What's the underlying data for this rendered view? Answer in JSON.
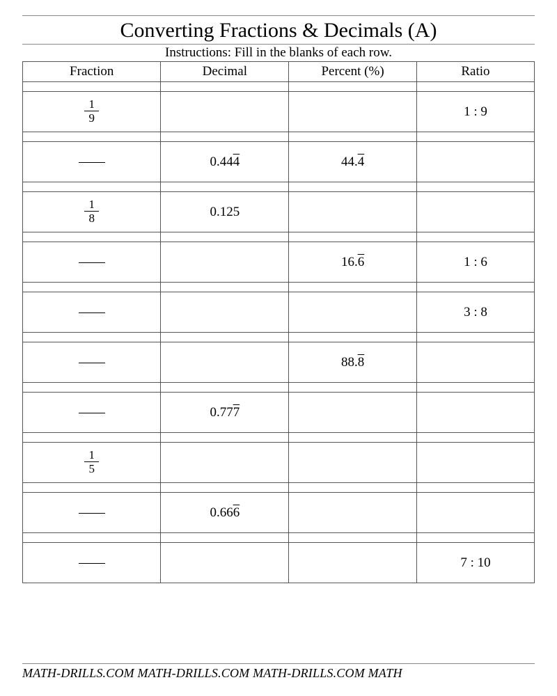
{
  "title": "Converting Fractions & Decimals (A)",
  "instructions": "Instructions: Fill in the blanks of each row.",
  "columns": {
    "fraction": "Fraction",
    "decimal": "Decimal",
    "percent": "Percent (%)",
    "ratio": "Ratio"
  },
  "rows": [
    {
      "fraction": {
        "type": "frac",
        "num": "1",
        "den": "9"
      },
      "decimal": "",
      "percent": "",
      "ratio": "1 : 9"
    },
    {
      "fraction": {
        "type": "blank"
      },
      "decimal": {
        "type": "rep",
        "base": "0.44",
        "rep": "4"
      },
      "percent": {
        "type": "rep",
        "base": "44.",
        "rep": "4"
      },
      "ratio": ""
    },
    {
      "fraction": {
        "type": "frac",
        "num": "1",
        "den": "8"
      },
      "decimal": "0.125",
      "percent": "",
      "ratio": ""
    },
    {
      "fraction": {
        "type": "blank"
      },
      "decimal": "",
      "percent": {
        "type": "rep",
        "base": "16.",
        "rep": "6"
      },
      "ratio": "1 : 6"
    },
    {
      "fraction": {
        "type": "blank"
      },
      "decimal": "",
      "percent": "",
      "ratio": "3 : 8"
    },
    {
      "fraction": {
        "type": "blank"
      },
      "decimal": "",
      "percent": {
        "type": "rep",
        "base": "88.",
        "rep": "8"
      },
      "ratio": ""
    },
    {
      "fraction": {
        "type": "blank"
      },
      "decimal": {
        "type": "rep",
        "base": "0.77",
        "rep": "7"
      },
      "percent": "",
      "ratio": ""
    },
    {
      "fraction": {
        "type": "frac",
        "num": "1",
        "den": "5"
      },
      "decimal": "",
      "percent": "",
      "ratio": ""
    },
    {
      "fraction": {
        "type": "blank"
      },
      "decimal": {
        "type": "rep",
        "base": "0.66",
        "rep": "6"
      },
      "percent": "",
      "ratio": ""
    },
    {
      "fraction": {
        "type": "blank"
      },
      "decimal": "",
      "percent": "",
      "ratio": "7 : 10"
    }
  ],
  "footer_unit": "MATH-DRILLS.COM",
  "footer_repeat": 3,
  "footer_tail": "MATH",
  "style": {
    "page_bg": "#ffffff",
    "text_color": "#000000",
    "border_color": "#555555",
    "rule_color": "#888888",
    "title_fontsize": 30,
    "body_fontsize": 19,
    "frac_fontsize": 17,
    "footer_fontsize": 18,
    "data_row_height": 58,
    "spacer_row_height": 14,
    "column_widths_pct": [
      27,
      25,
      25,
      23
    ]
  }
}
